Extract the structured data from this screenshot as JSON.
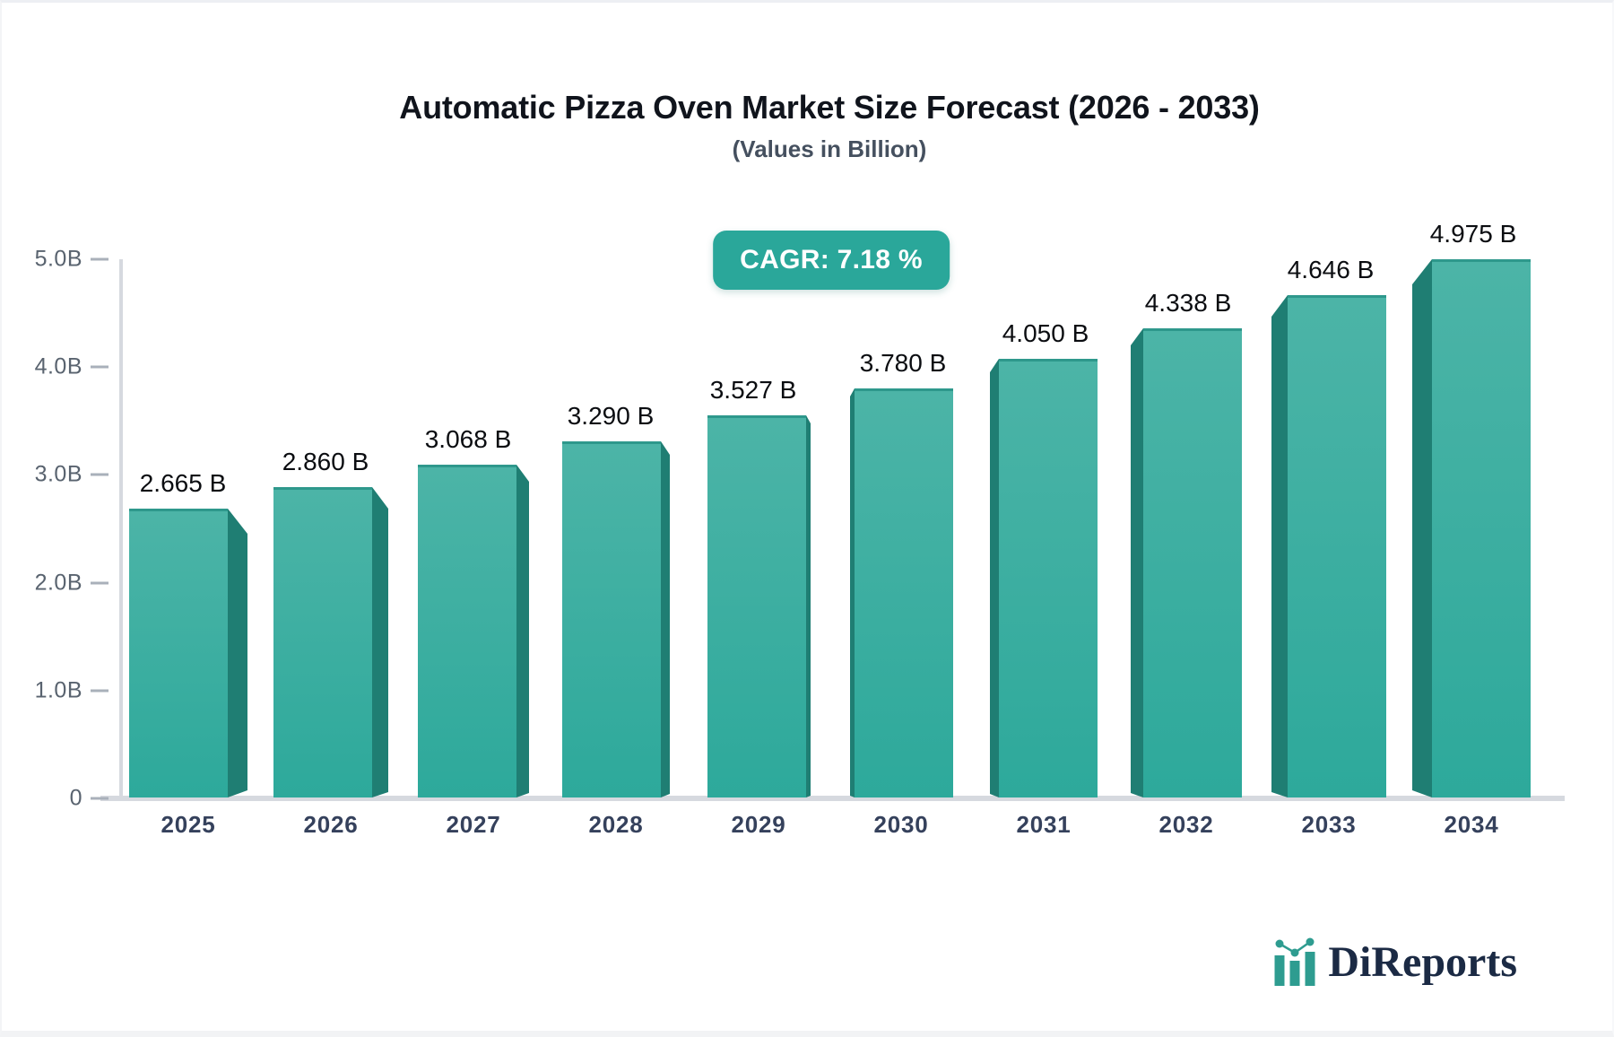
{
  "chart_data": {
    "type": "bar",
    "title": "Automatic Pizza Oven Market Size Forecast (2026 - 2033)",
    "subtitle": "(Values in Billion)",
    "cagr_label": "CAGR: 7.18 %",
    "categories": [
      "2025",
      "2026",
      "2027",
      "2028",
      "2029",
      "2030",
      "2031",
      "2032",
      "2033",
      "2034"
    ],
    "values": [
      2.665,
      2.86,
      3.068,
      3.29,
      3.527,
      3.78,
      4.05,
      4.338,
      4.646,
      4.975
    ],
    "value_labels": [
      "2.665 B",
      "2.860 B",
      "3.068 B",
      "3.290 B",
      "3.527 B",
      "3.780 B",
      "4.050 B",
      "4.338 B",
      "4.646 B",
      "4.975 B"
    ],
    "xlabel": "",
    "ylabel": "",
    "ylim": [
      0,
      5
    ],
    "yticks": [
      {
        "value": 5.0,
        "label": "5.0B"
      },
      {
        "value": 4.0,
        "label": "4.0B"
      },
      {
        "value": 3.0,
        "label": "3.0B"
      },
      {
        "value": 2.0,
        "label": "2.0B"
      },
      {
        "value": 1.0,
        "label": "1.0B"
      },
      {
        "value": 0.0,
        "label": "0"
      }
    ],
    "grid": "off",
    "legend": "none",
    "bar_style": "3d-perspective, side faces darker, vanishing point at chart center"
  },
  "colors": {
    "bar_top": "#4cb4a7",
    "bar_bottom": "#2da99b",
    "bar_side": "#1f7e73",
    "bar_topline": "#2e988c",
    "badge_bg": "#2aa79a",
    "axis": "#d6d9df",
    "title_text": "#10141c",
    "year_text": "#35415c",
    "ytick_text": "#59636f"
  },
  "footer": {
    "logo_text": "DiReports",
    "logo_icon": "mini-bar-line-chart-icon"
  }
}
